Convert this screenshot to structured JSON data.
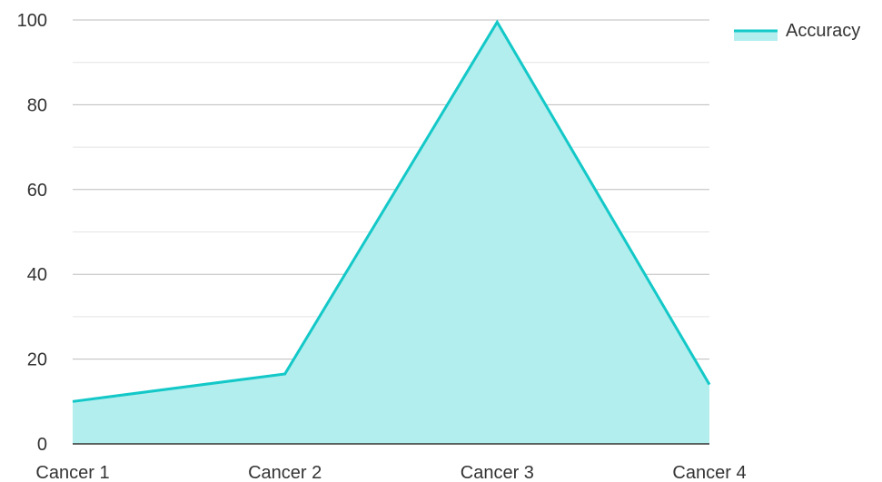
{
  "chart_data": {
    "type": "area",
    "categories": [
      "Cancer 1",
      "Cancer 2",
      "Cancer 3",
      "Cancer 4"
    ],
    "series": [
      {
        "name": "Accuracy",
        "values": [
          10,
          16.5,
          99.5,
          14
        ]
      }
    ],
    "ylim": [
      0,
      100
    ],
    "yticks": [
      0,
      20,
      40,
      60,
      80,
      100
    ],
    "grid": true,
    "legend_position": "top-right",
    "colors": {
      "line": "#14c8c8",
      "fill": "#b2eeee",
      "major_grid": "#bdbdbd",
      "minor_grid": "#e4e4e4",
      "axis": "#333333"
    }
  }
}
